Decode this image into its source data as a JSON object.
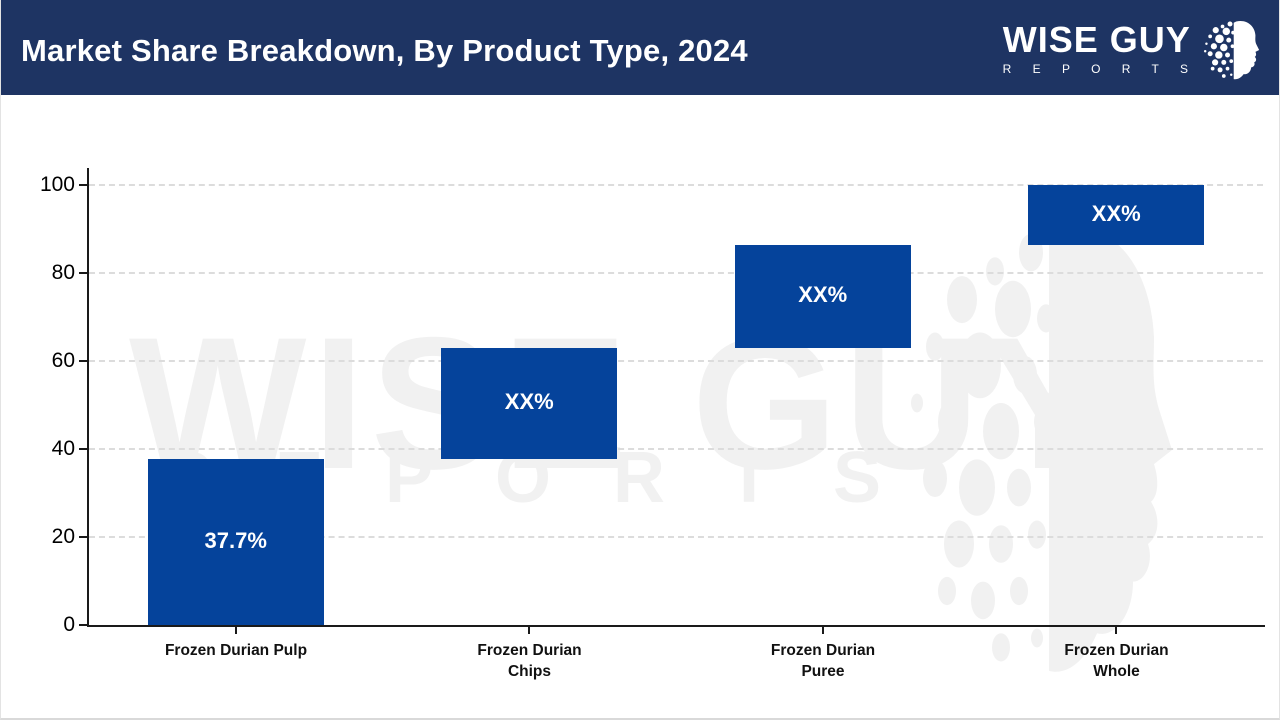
{
  "header": {
    "title": "Market Share Breakdown, By Product Type, 2024",
    "logo": {
      "line1": "WISE GUY",
      "line2": "REPORTS"
    }
  },
  "watermark": {
    "line1": "WISE GUY",
    "line2": "REPORTS"
  },
  "colors": {
    "header_bg": "#1e3463",
    "bar": "#05439b",
    "axis": "#1a1a1a",
    "gridline": "#dcdcdc",
    "bar_label": "#ffffff",
    "watermark": "#f1f1f1"
  },
  "chart_data": {
    "type": "bar",
    "subtype": "floating-waterfall",
    "title": "Market Share Breakdown, By Product Type, 2024",
    "xlabel": "",
    "ylabel": "",
    "ylim": [
      0,
      100
    ],
    "y_ticks": [
      0,
      20,
      40,
      60,
      80,
      100
    ],
    "grid": "horizontal dashed",
    "legend": "none",
    "categories": [
      "Frozen Durian Pulp",
      "Frozen Durian\nChips",
      "Frozen Durian\nPuree",
      "Frozen Durian\nWhole"
    ],
    "values": [
      37.7,
      25.3,
      23.4,
      13.6
    ],
    "segments": [
      {
        "category": "Frozen Durian Pulp",
        "start": 0,
        "end": 37.7,
        "label": "37.7%"
      },
      {
        "category": "Frozen Durian Chips",
        "start": 37.7,
        "end": 63.0,
        "label": "XX%"
      },
      {
        "category": "Frozen Durian Puree",
        "start": 63.0,
        "end": 86.4,
        "label": "XX%"
      },
      {
        "category": "Frozen Durian Whole",
        "start": 86.4,
        "end": 100,
        "label": "XX%"
      }
    ]
  }
}
